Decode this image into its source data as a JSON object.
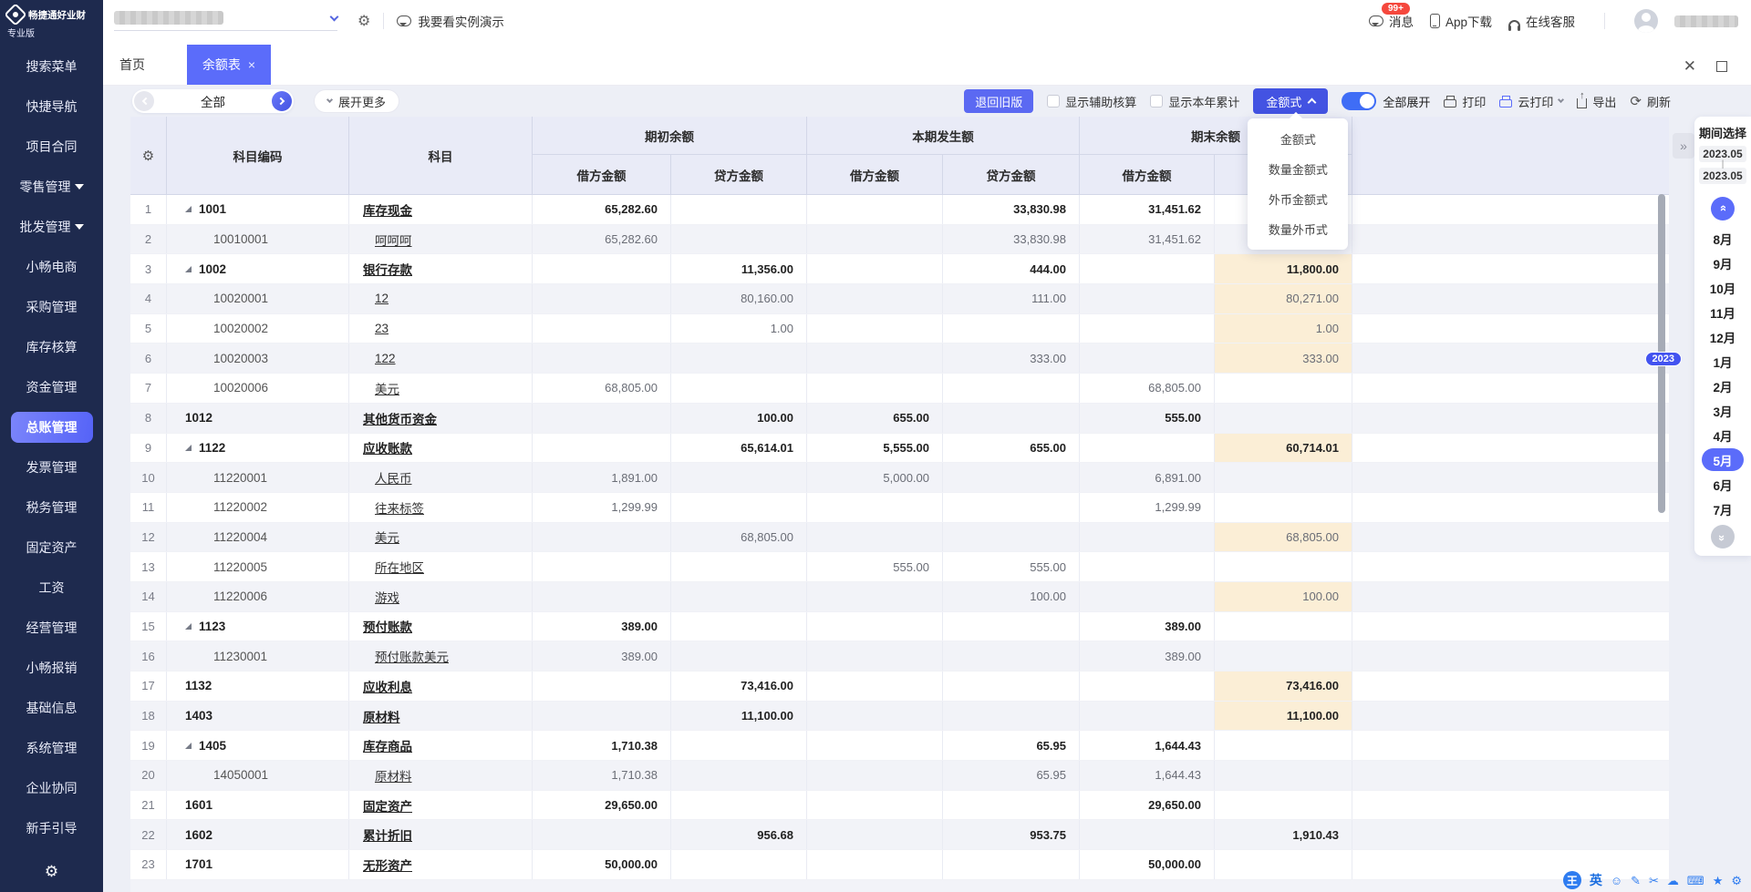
{
  "app": {
    "brand": "畅捷通好业财",
    "edition": "专业版"
  },
  "topbar": {
    "demo": "我要看实例演示",
    "messages": "消息",
    "badge": "99+",
    "download": "App下载",
    "service": "在线客服"
  },
  "sidebar": {
    "items": [
      {
        "label": "搜索菜单"
      },
      {
        "label": "快捷导航"
      },
      {
        "label": "项目合同"
      },
      {
        "label": "零售管理",
        "caret": true
      },
      {
        "label": "批发管理",
        "caret": true
      },
      {
        "label": "小畅电商"
      },
      {
        "label": "采购管理"
      },
      {
        "label": "库存核算"
      },
      {
        "label": "资金管理"
      },
      {
        "label": "总账管理",
        "active": true
      },
      {
        "label": "发票管理"
      },
      {
        "label": "税务管理"
      },
      {
        "label": "固定资产"
      },
      {
        "label": "工资"
      },
      {
        "label": "经营管理"
      },
      {
        "label": "小畅报销"
      },
      {
        "label": "基础信息"
      },
      {
        "label": "系统管理"
      },
      {
        "label": "企业协同"
      },
      {
        "label": "新手引导"
      }
    ]
  },
  "tabs": {
    "home": "首页",
    "current": "余额表"
  },
  "toolbar": {
    "scope": "全部",
    "more": "展开更多",
    "back_old": "退回旧版",
    "aux": "显示辅助核算",
    "ytd": "显示本年累计",
    "format": "金额式",
    "expand_all": "全部展开",
    "print": "打印",
    "cloud_print": "云打印",
    "export": "导出",
    "refresh": "刷新"
  },
  "format_menu": {
    "items": [
      "金额式",
      "数量金额式",
      "外币金额式",
      "数量外币式"
    ]
  },
  "table": {
    "col_code": "科目编码",
    "col_subject": "科目",
    "groups": [
      "期初余额",
      "本期发生额",
      "期末余额"
    ],
    "sub_debit": "借方金额",
    "sub_credit": "贷方金额",
    "rows": [
      {
        "n": 1,
        "code": "1001",
        "name": "库存现金",
        "bold": true,
        "tri": true,
        "vals": [
          "65,282.60",
          "",
          "",
          "33,830.98",
          "31,451.62",
          ""
        ],
        "hl": []
      },
      {
        "n": 2,
        "code": "10010001",
        "name": "呵呵呵",
        "bold": false,
        "tri": false,
        "vals": [
          "65,282.60",
          "",
          "",
          "33,830.98",
          "31,451.62",
          ""
        ],
        "hl": []
      },
      {
        "n": 3,
        "code": "1002",
        "name": "银行存款",
        "bold": true,
        "tri": true,
        "vals": [
          "",
          "11,356.00",
          "",
          "444.00",
          "",
          "11,800.00"
        ],
        "hl": [
          5
        ]
      },
      {
        "n": 4,
        "code": "10020001",
        "name": "12",
        "bold": false,
        "tri": false,
        "vals": [
          "",
          "80,160.00",
          "",
          "111.00",
          "",
          "80,271.00"
        ],
        "hl": [
          5
        ]
      },
      {
        "n": 5,
        "code": "10020002",
        "name": "23",
        "bold": false,
        "tri": false,
        "vals": [
          "",
          "1.00",
          "",
          "",
          "",
          "1.00"
        ],
        "hl": [
          5
        ]
      },
      {
        "n": 6,
        "code": "10020003",
        "name": "122",
        "bold": false,
        "tri": false,
        "vals": [
          "",
          "",
          "",
          "333.00",
          "",
          "333.00"
        ],
        "hl": [
          5
        ]
      },
      {
        "n": 7,
        "code": "10020006",
        "name": "美元",
        "bold": false,
        "tri": false,
        "vals": [
          "68,805.00",
          "",
          "",
          "",
          "68,805.00",
          ""
        ],
        "hl": []
      },
      {
        "n": 8,
        "code": "1012",
        "name": "其他货币资金",
        "bold": true,
        "tri": false,
        "vals": [
          "",
          "100.00",
          "655.00",
          "",
          "555.00",
          ""
        ],
        "hl": []
      },
      {
        "n": 9,
        "code": "1122",
        "name": "应收账款",
        "bold": true,
        "tri": true,
        "vals": [
          "",
          "65,614.01",
          "5,555.00",
          "655.00",
          "",
          "60,714.01"
        ],
        "hl": [
          5
        ]
      },
      {
        "n": 10,
        "code": "11220001",
        "name": "人民币",
        "bold": false,
        "tri": false,
        "vals": [
          "1,891.00",
          "",
          "5,000.00",
          "",
          "6,891.00",
          ""
        ],
        "hl": []
      },
      {
        "n": 11,
        "code": "11220002",
        "name": "往来标签",
        "bold": false,
        "tri": false,
        "vals": [
          "1,299.99",
          "",
          "",
          "",
          "1,299.99",
          ""
        ],
        "hl": []
      },
      {
        "n": 12,
        "code": "11220004",
        "name": "美元",
        "bold": false,
        "tri": false,
        "vals": [
          "",
          "68,805.00",
          "",
          "",
          "",
          "68,805.00"
        ],
        "hl": [
          5
        ]
      },
      {
        "n": 13,
        "code": "11220005",
        "name": "所在地区",
        "bold": false,
        "tri": false,
        "vals": [
          "",
          "",
          "555.00",
          "555.00",
          "",
          ""
        ],
        "hl": []
      },
      {
        "n": 14,
        "code": "11220006",
        "name": "游戏",
        "bold": false,
        "tri": false,
        "vals": [
          "",
          "",
          "",
          "100.00",
          "",
          "100.00"
        ],
        "hl": [
          5
        ]
      },
      {
        "n": 15,
        "code": "1123",
        "name": "预付账款",
        "bold": true,
        "tri": true,
        "vals": [
          "389.00",
          "",
          "",
          "",
          "389.00",
          ""
        ],
        "hl": []
      },
      {
        "n": 16,
        "code": "11230001",
        "name": "预付账款美元",
        "bold": false,
        "tri": false,
        "vals": [
          "389.00",
          "",
          "",
          "",
          "389.00",
          ""
        ],
        "hl": []
      },
      {
        "n": 17,
        "code": "1132",
        "name": "应收利息",
        "bold": true,
        "tri": false,
        "vals": [
          "",
          "73,416.00",
          "",
          "",
          "",
          "73,416.00"
        ],
        "hl": [
          5
        ]
      },
      {
        "n": 18,
        "code": "1403",
        "name": "原材料",
        "bold": true,
        "tri": false,
        "vals": [
          "",
          "11,100.00",
          "",
          "",
          "",
          "11,100.00"
        ],
        "hl": [
          5
        ]
      },
      {
        "n": 19,
        "code": "1405",
        "name": "库存商品",
        "bold": true,
        "tri": true,
        "vals": [
          "1,710.38",
          "",
          "",
          "65.95",
          "1,644.43",
          ""
        ],
        "hl": []
      },
      {
        "n": 20,
        "code": "14050001",
        "name": "原材料",
        "bold": false,
        "tri": false,
        "vals": [
          "1,710.38",
          "",
          "",
          "65.95",
          "1,644.43",
          ""
        ],
        "hl": []
      },
      {
        "n": 21,
        "code": "1601",
        "name": "固定资产",
        "bold": true,
        "tri": false,
        "vals": [
          "29,650.00",
          "",
          "",
          "",
          "29,650.00",
          ""
        ],
        "hl": []
      },
      {
        "n": 22,
        "code": "1602",
        "name": "累计折旧",
        "bold": true,
        "tri": false,
        "vals": [
          "",
          "956.68",
          "",
          "953.75",
          "",
          "1,910.43"
        ],
        "hl": []
      },
      {
        "n": 23,
        "code": "1701",
        "name": "无形资产",
        "bold": true,
        "tri": false,
        "vals": [
          "50,000.00",
          "",
          "",
          "",
          "50,000.00",
          ""
        ],
        "hl": []
      }
    ]
  },
  "period": {
    "title": "期间选择",
    "from": "2023.05",
    "to": "2023.05",
    "year_badge": "2023",
    "months": [
      "8月",
      "9月",
      "10月",
      "11月",
      "12月",
      "1月",
      "2月",
      "3月",
      "4月",
      "5月",
      "6月",
      "7月"
    ],
    "selected": "5月"
  },
  "ime": {
    "logo": "王",
    "lang": "英",
    "icons": [
      {
        "name": "smiley-icon",
        "glyph": "☺"
      },
      {
        "name": "pen-icon",
        "glyph": "✎"
      },
      {
        "name": "scissors-icon",
        "glyph": "✂"
      },
      {
        "name": "cloud-icon",
        "glyph": "☁"
      },
      {
        "name": "keyboard-icon",
        "glyph": "⌨"
      },
      {
        "name": "star-icon",
        "glyph": "★"
      },
      {
        "name": "gear-icon",
        "glyph": "⚙"
      }
    ]
  },
  "colors": {
    "accent": "#5b6cfa",
    "sidebar_bg": "#1e2a4e",
    "header_bg": "#e9ebf7",
    "highlight_cell": "#fbeed6",
    "badge_red": "#f5483d"
  }
}
